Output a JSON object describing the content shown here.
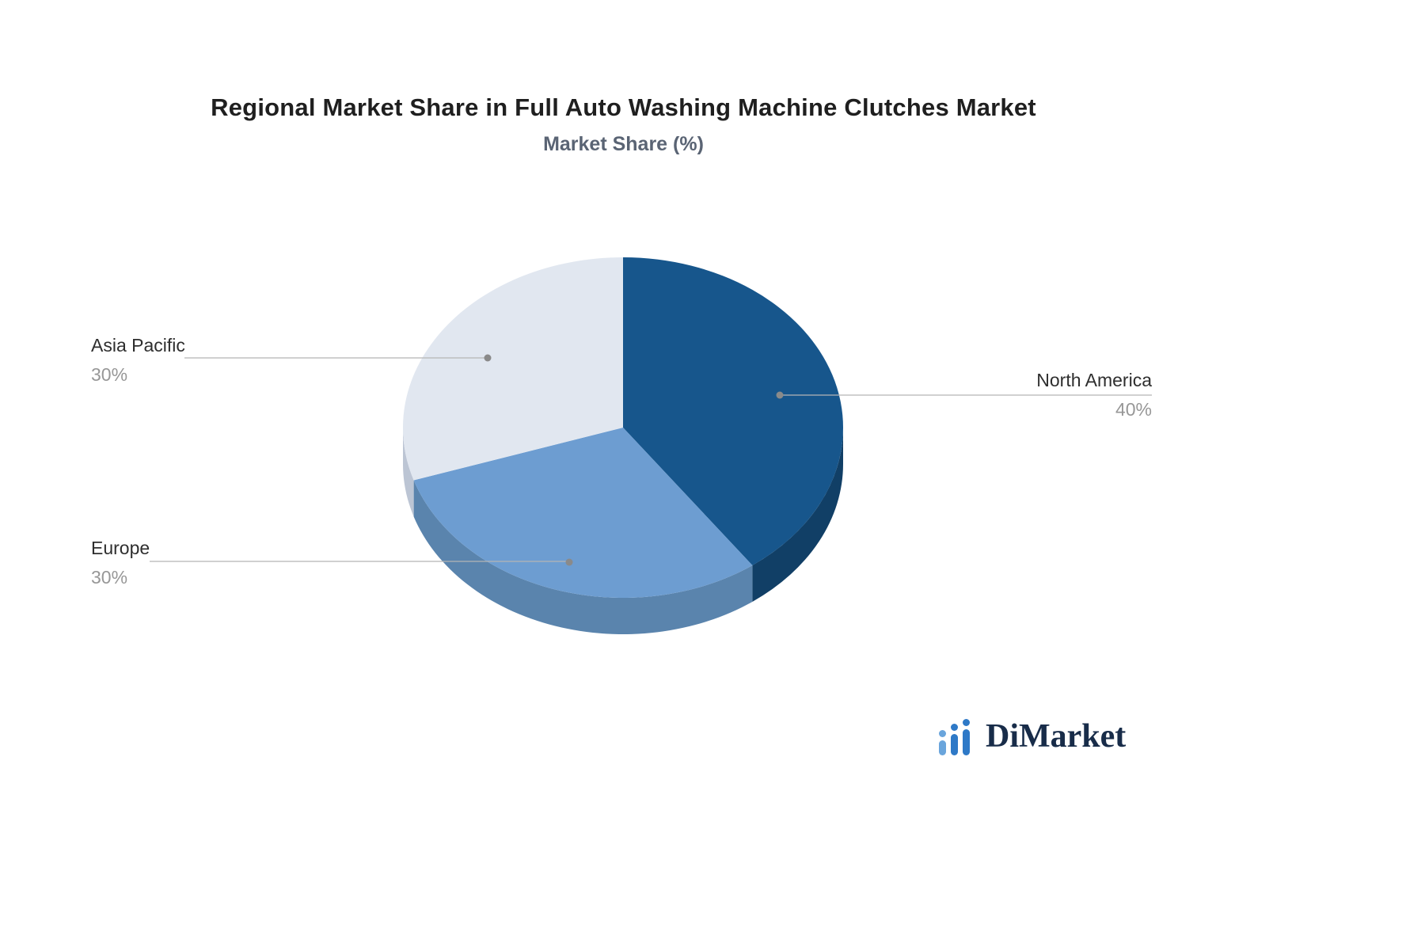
{
  "chart_data": {
    "type": "pie",
    "title": "Regional Market Share in Full Auto Washing Machine Clutches Market",
    "subtitle": "Market Share (%)",
    "unit": "%",
    "total": 100,
    "start_angle_deg": 0,
    "direction": "clockwise",
    "style": "3d-pie",
    "legend_position": "none",
    "label_style": "leader-lines",
    "slices": [
      {
        "label": "North America",
        "value": 40,
        "display": "40%",
        "color": "#17568c",
        "side_color": "#113f66"
      },
      {
        "label": "Europe",
        "value": 30,
        "display": "30%",
        "color": "#6d9dd1",
        "side_color": "#5a84ad"
      },
      {
        "label": "Asia Pacific",
        "value": 30,
        "display": "30%",
        "color": "#e1e7f0",
        "side_color": "#bcc5d4"
      }
    ]
  },
  "branding": {
    "logo_text": "DiMarket",
    "logo_text_color": "#182c49",
    "icon_color": "#2e79c7",
    "icon_color_light": "#6aa5dc"
  }
}
